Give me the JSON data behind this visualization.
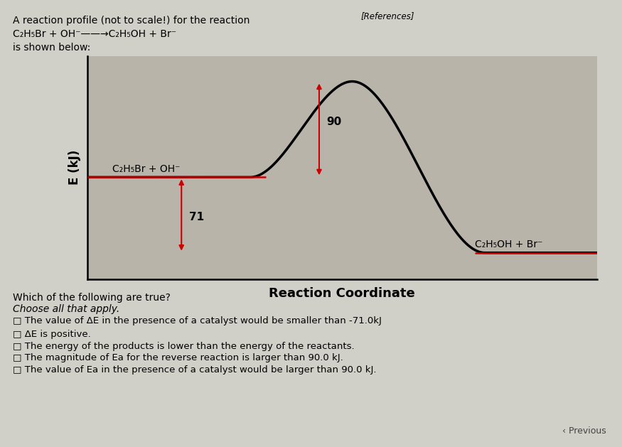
{
  "title_line1": "A reaction profile (not to scale!) for the reaction",
  "title_line2": "C₂H₅Br + OH⁻——→C₂H₅OH + Br⁻",
  "title_line3": "is shown below:",
  "xlabel": "Reaction Coordinate",
  "ylabel": "E (kJ)",
  "bg_color": "#d0cfc8",
  "plot_bg_color": "#b8b4aa",
  "reactant_label": "C₂H₅Br + OH⁻",
  "product_label": "C₂H₅OH + Br⁻",
  "energy_reactant": 71,
  "energy_product": 0,
  "energy_activation": 90,
  "energy_peak": 161,
  "arrow_color": "#cc0000",
  "line_color": "#cc0000",
  "curve_color": "#000000",
  "curve_linewidth": 2.5,
  "ref_label": "[References]",
  "questions": [
    [
      "Which of the following are true?",
      "normal",
      10
    ],
    [
      "Choose all that apply.",
      "italic",
      10
    ],
    [
      "□ The value of ΔE in the presence of a catalyst would be smaller than -71.0kJ",
      "normal",
      9.5
    ],
    [
      "□ ΔE is positive.",
      "normal",
      9.5
    ],
    [
      "□ The energy of the products is lower than the energy of the reactants.",
      "normal",
      9.5
    ],
    [
      "□ The magnitude of Ea for the reverse reaction is larger than 90.0 kJ.",
      "normal",
      9.5
    ],
    [
      "□ The value of Ea in the presence of a catalyst would be larger than 90.0 kJ.",
      "normal",
      9.5
    ]
  ]
}
